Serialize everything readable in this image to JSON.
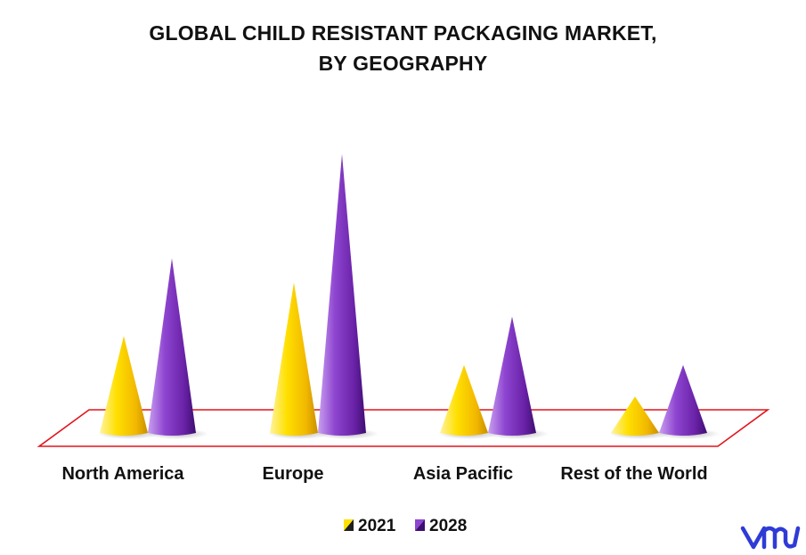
{
  "chart_data": {
    "type": "bar",
    "title_line1": "GLOBAL CHILD RESISTANT PACKAGING MARKET,",
    "title_line2": "BY GEOGRAPHY",
    "categories": [
      "North America",
      "Europe",
      "Asia Pacific",
      "Rest of the World"
    ],
    "series": [
      {
        "name": "2021",
        "values": [
          40,
          62,
          28,
          15
        ],
        "color": "#FFD400"
      },
      {
        "name": "2028",
        "values": [
          72,
          115,
          48,
          28
        ],
        "color": "#7A2FB0"
      }
    ],
    "ylim": [
      0,
      120
    ],
    "legend_position": "bottom-center",
    "grid": false,
    "shape": "cone"
  },
  "brand": {
    "logo_text": "vmr",
    "color": "#2F3BD6"
  }
}
